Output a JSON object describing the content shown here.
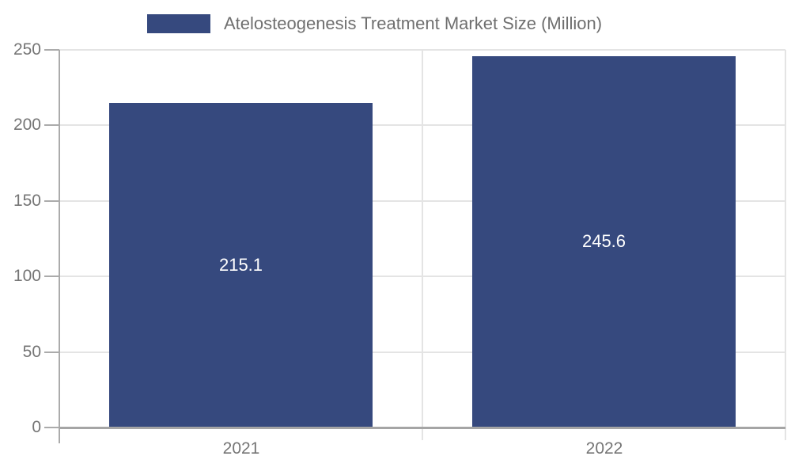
{
  "legend": {
    "label": "Atelosteogenesis Treatment Market Size (Million)"
  },
  "chart_data": {
    "type": "bar",
    "title": "Atelosteogenesis Treatment Market Size (Million)",
    "categories": [
      "2021",
      "2022"
    ],
    "series": [
      {
        "name": "Atelosteogenesis Treatment Market Size (Million)",
        "values": [
          215.1,
          245.6
        ]
      }
    ],
    "value_labels": [
      "215.1",
      "245.6"
    ],
    "xlabel": "",
    "ylabel": "",
    "ylim": [
      0,
      250
    ],
    "yticks": [
      0,
      50,
      100,
      150,
      200,
      250
    ],
    "grid": true,
    "legend_position": "top-center",
    "colors": {
      "bar": "#36497E",
      "grid": "#e4e4e4",
      "axis": "#a5a5a5",
      "spine": "#ababab",
      "tick_label": "#757575",
      "legend_text": "#6f6f6f",
      "value_label": "#ffffff"
    }
  }
}
